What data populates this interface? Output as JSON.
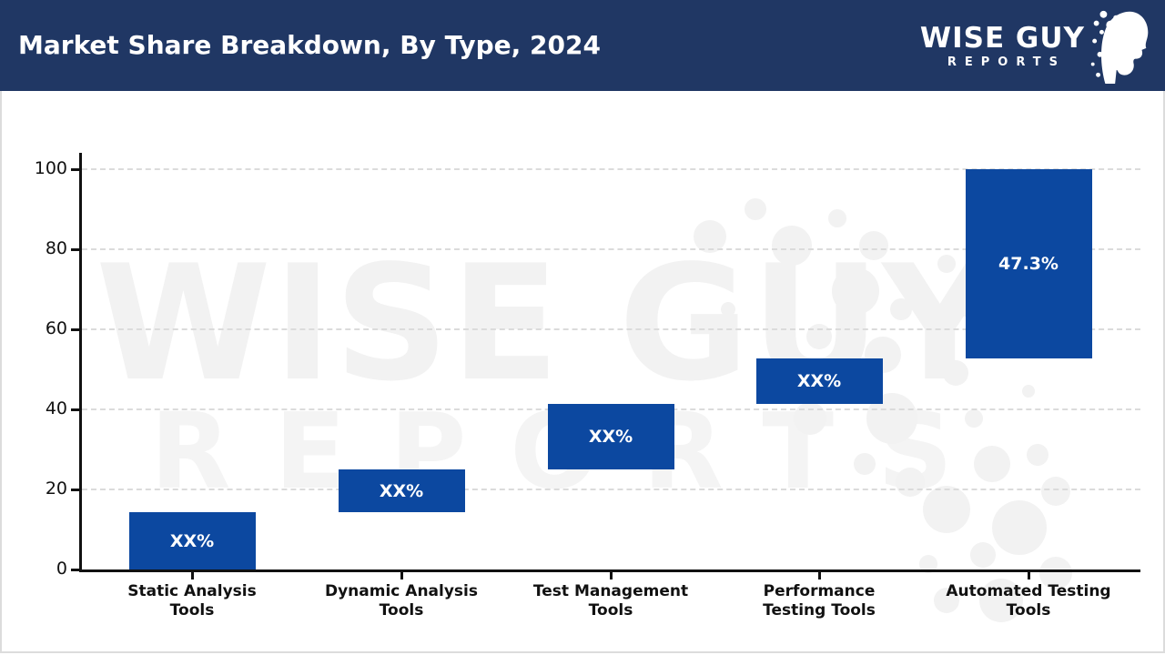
{
  "header": {
    "title": "Market Share Breakdown, By Type, 2024",
    "logo": {
      "line1": "WISE GUY",
      "line2": "REPORTS"
    }
  },
  "watermark": {
    "line1": "WISE GUY",
    "line2": "REPORTS"
  },
  "colors": {
    "header_bg": "#203764",
    "bar": "#0C48A0",
    "grid": "#DBDBDB",
    "axis": "#111111",
    "watermark": "#F2F2F2",
    "title_text": "#FFFFFF"
  },
  "chart_data": {
    "type": "bar",
    "subtype": "floating-waterfall",
    "title": "Market Share Breakdown, By Type, 2024",
    "xlabel": "",
    "ylabel": "",
    "ylim": [
      0,
      104
    ],
    "yticks": [
      0,
      20,
      40,
      60,
      80,
      100
    ],
    "grid": true,
    "legend": "none",
    "categories": [
      "Static Analysis Tools",
      "Dynamic Analysis Tools",
      "Test Management Tools",
      "Performance Testing Tools",
      "Automated Testing Tools"
    ],
    "bars": [
      {
        "category": "Static Analysis Tools",
        "lines": [
          "Static Analysis",
          "Tools"
        ],
        "start": 0,
        "end": 14.3,
        "height": 14.3,
        "value_label": "XX%"
      },
      {
        "category": "Dynamic Analysis Tools",
        "lines": [
          "Dynamic Analysis",
          "Tools"
        ],
        "start": 14.3,
        "end": 25.0,
        "height": 10.7,
        "value_label": "XX%"
      },
      {
        "category": "Test Management Tools",
        "lines": [
          "Test Management",
          "Tools"
        ],
        "start": 25.0,
        "end": 41.4,
        "height": 16.4,
        "value_label": "XX%"
      },
      {
        "category": "Performance Testing Tools",
        "lines": [
          "Performance",
          "Testing Tools"
        ],
        "start": 41.4,
        "end": 52.7,
        "height": 11.3,
        "value_label": "XX%"
      },
      {
        "category": "Automated Testing Tools",
        "lines": [
          "Automated Testing",
          "Tools"
        ],
        "start": 52.7,
        "end": 100,
        "height": 47.3,
        "value_label": "47.3%"
      }
    ]
  }
}
